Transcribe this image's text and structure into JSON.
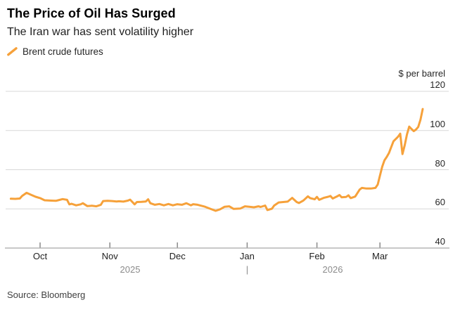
{
  "header": {
    "title": "The Price of Oil Has Surged",
    "subtitle": "The Iran war has sent volatility higher"
  },
  "legend": {
    "label": "Brent crude futures",
    "swatch_color": "#F6A13A"
  },
  "source": {
    "text": "Source: Bloomberg"
  },
  "colors": {
    "line": "#F6A13A",
    "gridline": "#d8d8d8",
    "baseline": "#b5b5b5",
    "tick_mark": "#8a8a8a",
    "year_label": "#8b8b8b"
  },
  "chart_data": {
    "type": "line",
    "title": "The Price of Oil Has Surged",
    "subtitle": "The Iran war has sent volatility higher",
    "unit_label": "$ per barrel",
    "legend_entries": [
      "Brent crude futures"
    ],
    "grid": true,
    "legend_position": "top-left",
    "ylim": [
      40,
      120
    ],
    "y_ticks": [
      40,
      60,
      80,
      100,
      120
    ],
    "x_ticks": [
      {
        "label": "Oct",
        "date": "2025-10-01"
      },
      {
        "label": "Nov",
        "date": "2025-11-01"
      },
      {
        "label": "Dec",
        "date": "2025-12-01"
      },
      {
        "label": "Jan",
        "date": "2026-01-01"
      },
      {
        "label": "Feb",
        "date": "2026-02-01"
      },
      {
        "label": "Mar",
        "date": "2026-03-01"
      }
    ],
    "x_year_labels": [
      {
        "label": "2025",
        "anchor_date": "2025-11-10"
      },
      {
        "label": "|",
        "anchor_date": "2026-01-01"
      },
      {
        "label": "2026",
        "anchor_date": "2026-02-08"
      }
    ],
    "series": [
      {
        "name": "Brent crude futures",
        "points": [
          [
            "2025-09-18",
            65.2
          ],
          [
            "2025-09-20",
            65.1
          ],
          [
            "2025-09-22",
            65.3
          ],
          [
            "2025-09-23",
            66.6
          ],
          [
            "2025-09-25",
            68.2
          ],
          [
            "2025-09-27",
            67.2
          ],
          [
            "2025-09-29",
            66.2
          ],
          [
            "2025-10-01",
            65.5
          ],
          [
            "2025-10-03",
            64.4
          ],
          [
            "2025-10-06",
            64.2
          ],
          [
            "2025-10-08",
            64.1
          ],
          [
            "2025-10-09",
            64.4
          ],
          [
            "2025-10-11",
            65.0
          ],
          [
            "2025-10-13",
            64.6
          ],
          [
            "2025-10-14",
            62.3
          ],
          [
            "2025-10-15",
            62.6
          ],
          [
            "2025-10-17",
            61.8
          ],
          [
            "2025-10-19",
            62.3
          ],
          [
            "2025-10-20",
            62.9
          ],
          [
            "2025-10-22",
            61.4
          ],
          [
            "2025-10-24",
            61.6
          ],
          [
            "2025-10-26",
            61.3
          ],
          [
            "2025-10-28",
            62.1
          ],
          [
            "2025-10-29",
            64.0
          ],
          [
            "2025-10-31",
            64.1
          ],
          [
            "2025-11-02",
            64.0
          ],
          [
            "2025-11-04",
            63.8
          ],
          [
            "2025-11-05",
            63.9
          ],
          [
            "2025-11-07",
            63.7
          ],
          [
            "2025-11-09",
            64.2
          ],
          [
            "2025-11-10",
            64.7
          ],
          [
            "2025-11-12",
            62.3
          ],
          [
            "2025-11-13",
            63.5
          ],
          [
            "2025-11-15",
            63.6
          ],
          [
            "2025-11-17",
            63.8
          ],
          [
            "2025-11-18",
            64.9
          ],
          [
            "2025-11-19",
            62.9
          ],
          [
            "2025-11-21",
            62.1
          ],
          [
            "2025-11-23",
            62.5
          ],
          [
            "2025-11-25",
            61.8
          ],
          [
            "2025-11-27",
            62.5
          ],
          [
            "2025-11-29",
            61.8
          ],
          [
            "2025-12-01",
            62.4
          ],
          [
            "2025-12-03",
            62.1
          ],
          [
            "2025-12-05",
            62.9
          ],
          [
            "2025-12-07",
            61.8
          ],
          [
            "2025-12-08",
            62.4
          ],
          [
            "2025-12-10",
            62.1
          ],
          [
            "2025-12-13",
            61.2
          ],
          [
            "2025-12-15",
            60.3
          ],
          [
            "2025-12-18",
            59.0
          ],
          [
            "2025-12-20",
            59.8
          ],
          [
            "2025-12-22",
            61.1
          ],
          [
            "2025-12-24",
            61.3
          ],
          [
            "2025-12-26",
            60.0
          ],
          [
            "2025-12-29",
            60.2
          ],
          [
            "2025-12-31",
            61.3
          ],
          [
            "2026-01-02",
            61.1
          ],
          [
            "2026-01-04",
            60.8
          ],
          [
            "2026-01-06",
            61.3
          ],
          [
            "2026-01-07",
            61.0
          ],
          [
            "2026-01-09",
            61.7
          ],
          [
            "2026-01-10",
            59.4
          ],
          [
            "2026-01-12",
            60.1
          ],
          [
            "2026-01-13",
            61.7
          ],
          [
            "2026-01-15",
            63.3
          ],
          [
            "2026-01-17",
            63.5
          ],
          [
            "2026-01-19",
            63.7
          ],
          [
            "2026-01-21",
            65.6
          ],
          [
            "2026-01-23",
            63.5
          ],
          [
            "2026-01-24",
            63.0
          ],
          [
            "2026-01-26",
            64.3
          ],
          [
            "2026-01-28",
            66.4
          ],
          [
            "2026-01-29",
            65.5
          ],
          [
            "2026-01-31",
            64.9
          ],
          [
            "2026-02-01",
            66.1
          ],
          [
            "2026-02-02",
            64.6
          ],
          [
            "2026-02-04",
            65.6
          ],
          [
            "2026-02-06",
            66.2
          ],
          [
            "2026-02-07",
            66.6
          ],
          [
            "2026-02-08",
            65.3
          ],
          [
            "2026-02-10",
            66.4
          ],
          [
            "2026-02-11",
            67.1
          ],
          [
            "2026-02-12",
            65.9
          ],
          [
            "2026-02-14",
            66.1
          ],
          [
            "2026-02-15",
            66.9
          ],
          [
            "2026-02-16",
            65.5
          ],
          [
            "2026-02-18",
            66.3
          ],
          [
            "2026-02-20",
            69.9
          ],
          [
            "2026-02-21",
            70.7
          ],
          [
            "2026-02-23",
            70.4
          ],
          [
            "2026-02-25",
            70.4
          ],
          [
            "2026-02-27",
            70.7
          ],
          [
            "2026-02-28",
            72.4
          ],
          [
            "2026-03-01",
            77.0
          ],
          [
            "2026-03-02",
            81.5
          ],
          [
            "2026-03-03",
            84.8
          ],
          [
            "2026-03-04",
            86.5
          ],
          [
            "2026-03-05",
            88.5
          ],
          [
            "2026-03-06",
            91.5
          ],
          [
            "2026-03-07",
            94.5
          ],
          [
            "2026-03-09",
            96.8
          ],
          [
            "2026-03-10",
            98.4
          ],
          [
            "2026-03-11",
            88.0
          ],
          [
            "2026-03-12",
            92.5
          ],
          [
            "2026-03-13",
            98.0
          ],
          [
            "2026-03-14",
            102.0
          ],
          [
            "2026-03-15",
            100.8
          ],
          [
            "2026-03-16",
            99.7
          ],
          [
            "2026-03-17",
            100.5
          ],
          [
            "2026-03-18",
            101.8
          ],
          [
            "2026-03-19",
            105.5
          ],
          [
            "2026-03-20",
            111.0
          ]
        ]
      }
    ]
  }
}
